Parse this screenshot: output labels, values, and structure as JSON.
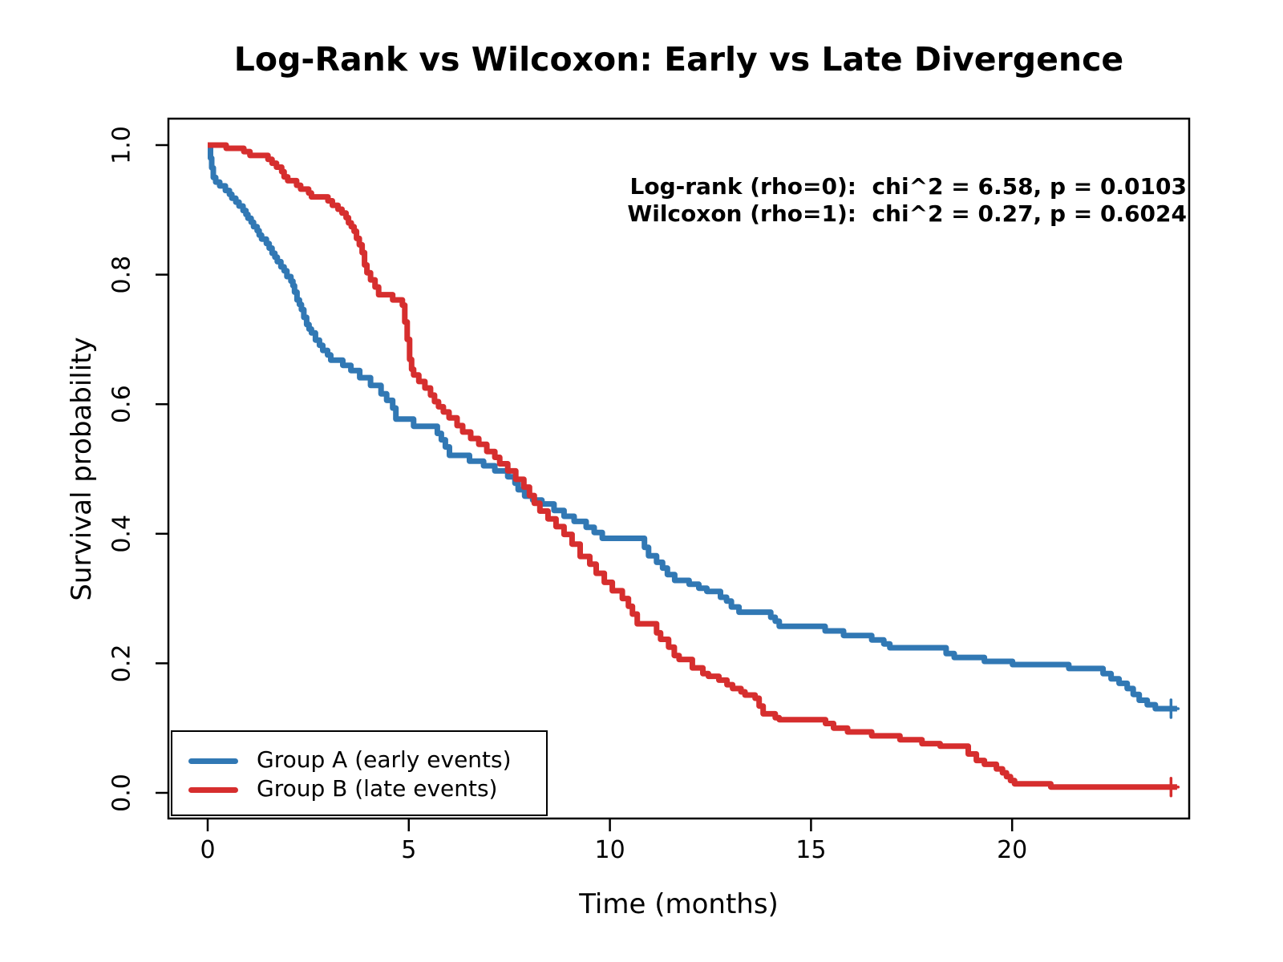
{
  "chart": {
    "title": "Log-Rank vs Wilcoxon: Early vs Late Divergence",
    "xlabel": "Time (months)",
    "ylabel": "Survival probability",
    "annotation_line1": "Log-rank (rho=0):  chi^2 = 6.58, p = 0.0103",
    "annotation_line2": "Wilcoxon (rho=1):  chi^2 = 0.27, p = 0.6024"
  },
  "legend": {
    "items": [
      {
        "label": "Group A (early events)"
      },
      {
        "label": "Group B (late events)"
      }
    ]
  },
  "chart_data": {
    "type": "line",
    "subtype": "kaplan-meier-step-survival",
    "title": "Log-Rank vs Wilcoxon: Early vs Late Divergence",
    "xlabel": "Time (months)",
    "ylabel": "Survival probability",
    "xlim": [
      0,
      24.1
    ],
    "ylim": [
      0,
      1
    ],
    "x_ticks": [
      0,
      5,
      10,
      15,
      20
    ],
    "y_ticks": [
      "0.0",
      "0.2",
      "0.4",
      "0.6",
      "0.8",
      "1.0"
    ],
    "grid": false,
    "legend_position": "lower-left",
    "stats": {
      "logrank": {
        "rho": 0,
        "chi2": 6.58,
        "p": 0.0103
      },
      "wilcoxon": {
        "rho": 1,
        "chi2": 0.27,
        "p": 0.6024
      }
    },
    "series": [
      {
        "name": "Group A (early events)",
        "color": "#3178B4",
        "end_time": 24.1,
        "censors": [
          [
            23.95,
            0.13
          ]
        ],
        "steps": [
          [
            0,
            1.0
          ],
          [
            0.07,
            0.98
          ],
          [
            0.1,
            0.965
          ],
          [
            0.14,
            0.95
          ],
          [
            0.2,
            0.943
          ],
          [
            0.3,
            0.937
          ],
          [
            0.44,
            0.93
          ],
          [
            0.54,
            0.924
          ],
          [
            0.6,
            0.918
          ],
          [
            0.7,
            0.912
          ],
          [
            0.78,
            0.906
          ],
          [
            0.88,
            0.899
          ],
          [
            0.95,
            0.893
          ],
          [
            1.0,
            0.887
          ],
          [
            1.08,
            0.881
          ],
          [
            1.14,
            0.874
          ],
          [
            1.23,
            0.868
          ],
          [
            1.28,
            0.861
          ],
          [
            1.34,
            0.855
          ],
          [
            1.46,
            0.848
          ],
          [
            1.53,
            0.841
          ],
          [
            1.6,
            0.833
          ],
          [
            1.67,
            0.827
          ],
          [
            1.73,
            0.82
          ],
          [
            1.82,
            0.812
          ],
          [
            1.9,
            0.806
          ],
          [
            1.97,
            0.797
          ],
          [
            2.07,
            0.79
          ],
          [
            2.12,
            0.783
          ],
          [
            2.16,
            0.773
          ],
          [
            2.22,
            0.761
          ],
          [
            2.28,
            0.754
          ],
          [
            2.33,
            0.746
          ],
          [
            2.39,
            0.734
          ],
          [
            2.46,
            0.723
          ],
          [
            2.52,
            0.716
          ],
          [
            2.58,
            0.71
          ],
          [
            2.68,
            0.699
          ],
          [
            2.78,
            0.691
          ],
          [
            2.86,
            0.683
          ],
          [
            2.98,
            0.676
          ],
          [
            3.06,
            0.668
          ],
          [
            3.36,
            0.66
          ],
          [
            3.56,
            0.652
          ],
          [
            3.78,
            0.641
          ],
          [
            4.05,
            0.629
          ],
          [
            4.31,
            0.616
          ],
          [
            4.45,
            0.606
          ],
          [
            4.6,
            0.594
          ],
          [
            4.68,
            0.577
          ],
          [
            5.12,
            0.566
          ],
          [
            5.71,
            0.555
          ],
          [
            5.81,
            0.545
          ],
          [
            5.91,
            0.534
          ],
          [
            6.01,
            0.521
          ],
          [
            6.51,
            0.512
          ],
          [
            6.86,
            0.505
          ],
          [
            7.14,
            0.497
          ],
          [
            7.46,
            0.488
          ],
          [
            7.64,
            0.478
          ],
          [
            7.72,
            0.468
          ],
          [
            7.88,
            0.458
          ],
          [
            8.08,
            0.452
          ],
          [
            8.31,
            0.446
          ],
          [
            8.61,
            0.436
          ],
          [
            8.86,
            0.427
          ],
          [
            9.11,
            0.419
          ],
          [
            9.41,
            0.41
          ],
          [
            9.61,
            0.402
          ],
          [
            9.81,
            0.393
          ],
          [
            10.86,
            0.379
          ],
          [
            10.96,
            0.366
          ],
          [
            11.16,
            0.356
          ],
          [
            11.31,
            0.347
          ],
          [
            11.43,
            0.337
          ],
          [
            11.61,
            0.328
          ],
          [
            11.97,
            0.322
          ],
          [
            12.21,
            0.316
          ],
          [
            12.41,
            0.311
          ],
          [
            12.75,
            0.302
          ],
          [
            12.9,
            0.296
          ],
          [
            13.02,
            0.287
          ],
          [
            13.21,
            0.279
          ],
          [
            14.0,
            0.271
          ],
          [
            14.11,
            0.265
          ],
          [
            14.21,
            0.257
          ],
          [
            15.35,
            0.25
          ],
          [
            15.81,
            0.243
          ],
          [
            16.51,
            0.236
          ],
          [
            16.81,
            0.23
          ],
          [
            16.96,
            0.224
          ],
          [
            18.36,
            0.215
          ],
          [
            18.56,
            0.209
          ],
          [
            19.31,
            0.203
          ],
          [
            20.01,
            0.198
          ],
          [
            21.41,
            0.192
          ],
          [
            22.26,
            0.184
          ],
          [
            22.46,
            0.176
          ],
          [
            22.66,
            0.169
          ],
          [
            22.86,
            0.161
          ],
          [
            23.01,
            0.152
          ],
          [
            23.16,
            0.143
          ],
          [
            23.36,
            0.136
          ],
          [
            23.56,
            0.13
          ]
        ]
      },
      {
        "name": "Group B (late events)",
        "color": "#D62E2E",
        "end_time": 24.1,
        "censors": [
          [
            23.95,
            0.009
          ]
        ],
        "steps": [
          [
            0,
            1.0
          ],
          [
            0.46,
            0.995
          ],
          [
            0.9,
            0.99
          ],
          [
            1.05,
            0.984
          ],
          [
            1.5,
            0.978
          ],
          [
            1.6,
            0.972
          ],
          [
            1.71,
            0.966
          ],
          [
            1.84,
            0.959
          ],
          [
            1.9,
            0.951
          ],
          [
            1.99,
            0.945
          ],
          [
            2.21,
            0.938
          ],
          [
            2.31,
            0.932
          ],
          [
            2.51,
            0.926
          ],
          [
            2.58,
            0.92
          ],
          [
            2.99,
            0.914
          ],
          [
            3.1,
            0.907
          ],
          [
            3.24,
            0.901
          ],
          [
            3.34,
            0.895
          ],
          [
            3.44,
            0.888
          ],
          [
            3.5,
            0.88
          ],
          [
            3.57,
            0.874
          ],
          [
            3.64,
            0.867
          ],
          [
            3.7,
            0.856
          ],
          [
            3.77,
            0.846
          ],
          [
            3.84,
            0.834
          ],
          [
            3.9,
            0.815
          ],
          [
            3.96,
            0.803
          ],
          [
            4.05,
            0.792
          ],
          [
            4.16,
            0.781
          ],
          [
            4.25,
            0.769
          ],
          [
            4.6,
            0.761
          ],
          [
            4.84,
            0.753
          ],
          [
            4.9,
            0.727
          ],
          [
            4.96,
            0.7
          ],
          [
            5.02,
            0.669
          ],
          [
            5.07,
            0.654
          ],
          [
            5.12,
            0.645
          ],
          [
            5.25,
            0.635
          ],
          [
            5.4,
            0.625
          ],
          [
            5.54,
            0.614
          ],
          [
            5.64,
            0.604
          ],
          [
            5.74,
            0.596
          ],
          [
            5.86,
            0.588
          ],
          [
            6.0,
            0.579
          ],
          [
            6.2,
            0.567
          ],
          [
            6.34,
            0.557
          ],
          [
            6.54,
            0.547
          ],
          [
            6.74,
            0.538
          ],
          [
            6.94,
            0.527
          ],
          [
            7.14,
            0.518
          ],
          [
            7.26,
            0.508
          ],
          [
            7.46,
            0.497
          ],
          [
            7.66,
            0.484
          ],
          [
            7.86,
            0.472
          ],
          [
            8.0,
            0.459
          ],
          [
            8.12,
            0.447
          ],
          [
            8.26,
            0.435
          ],
          [
            8.46,
            0.423
          ],
          [
            8.66,
            0.411
          ],
          [
            8.86,
            0.399
          ],
          [
            9.06,
            0.384
          ],
          [
            9.26,
            0.365
          ],
          [
            9.5,
            0.353
          ],
          [
            9.66,
            0.339
          ],
          [
            9.86,
            0.325
          ],
          [
            10.06,
            0.312
          ],
          [
            10.31,
            0.3
          ],
          [
            10.46,
            0.288
          ],
          [
            10.56,
            0.276
          ],
          [
            10.68,
            0.261
          ],
          [
            11.16,
            0.247
          ],
          [
            11.26,
            0.237
          ],
          [
            11.46,
            0.225
          ],
          [
            11.6,
            0.212
          ],
          [
            11.72,
            0.206
          ],
          [
            12.05,
            0.193
          ],
          [
            12.31,
            0.184
          ],
          [
            12.45,
            0.18
          ],
          [
            12.71,
            0.174
          ],
          [
            12.91,
            0.167
          ],
          [
            13.05,
            0.161
          ],
          [
            13.26,
            0.156
          ],
          [
            13.36,
            0.151
          ],
          [
            13.61,
            0.146
          ],
          [
            13.71,
            0.134
          ],
          [
            13.81,
            0.122
          ],
          [
            14.11,
            0.116
          ],
          [
            14.21,
            0.113
          ],
          [
            15.36,
            0.107
          ],
          [
            15.56,
            0.1
          ],
          [
            15.91,
            0.094
          ],
          [
            16.51,
            0.088
          ],
          [
            17.21,
            0.082
          ],
          [
            17.76,
            0.076
          ],
          [
            18.21,
            0.072
          ],
          [
            18.91,
            0.06
          ],
          [
            19.11,
            0.05
          ],
          [
            19.31,
            0.044
          ],
          [
            19.61,
            0.037
          ],
          [
            19.76,
            0.031
          ],
          [
            19.86,
            0.025
          ],
          [
            19.96,
            0.019
          ],
          [
            20.06,
            0.014
          ],
          [
            20.96,
            0.009
          ]
        ]
      }
    ]
  }
}
